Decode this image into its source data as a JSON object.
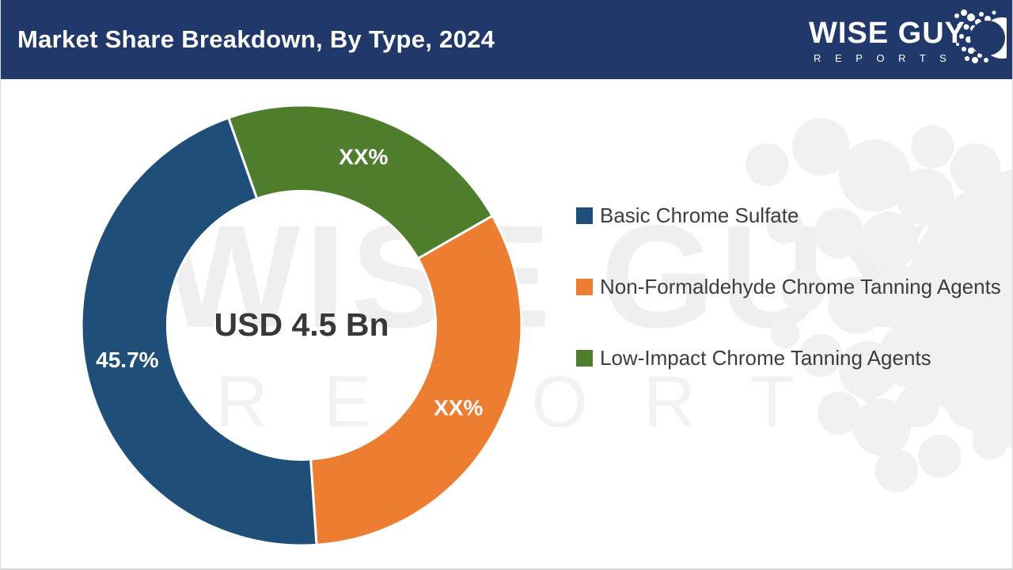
{
  "header": {
    "title": "Market Share Breakdown, By Type, 2024",
    "background_color": "#21386B",
    "logo": {
      "line1": "WISE GUY",
      "line2": "R E P O R T S"
    }
  },
  "chart_data": {
    "type": "pie",
    "subtype": "donut",
    "title": "Market Share Breakdown, By Type, 2024",
    "center_label": "USD 4.5 Bn",
    "donut_hole_ratio": 0.61,
    "start_angle_deg": -19.4,
    "legend_position": "right",
    "slices": [
      {
        "name": "Low-Impact Chrome Tanning Agents",
        "label": "XX%",
        "value_pct": 22.1,
        "color": "#4E7D2B"
      },
      {
        "name": "Non-Formaldehyde Chrome Tanning Agents",
        "label": "XX%",
        "value_pct": 32.2,
        "color": "#ED7D31"
      },
      {
        "name": "Basic Chrome Sulfate",
        "label": "45.7%",
        "value_pct": 45.7,
        "color": "#1F4E79"
      }
    ]
  },
  "legend": {
    "items": [
      {
        "label": "Basic Chrome Sulfate",
        "color": "#1F4E79"
      },
      {
        "label": "Non-Formaldehyde Chrome Tanning Agents",
        "color": "#ED7D31"
      },
      {
        "label": "Low-Impact Chrome Tanning Agents",
        "color": "#4E7D2B"
      }
    ]
  },
  "watermark": {
    "line1": "WISE GUY",
    "line2": "REPORTS"
  },
  "colors": {
    "title_text": "#FFFFFF",
    "legend_text": "#3D3D3D",
    "center_text": "#383838",
    "slice_label_text": "#FFFFFF"
  }
}
